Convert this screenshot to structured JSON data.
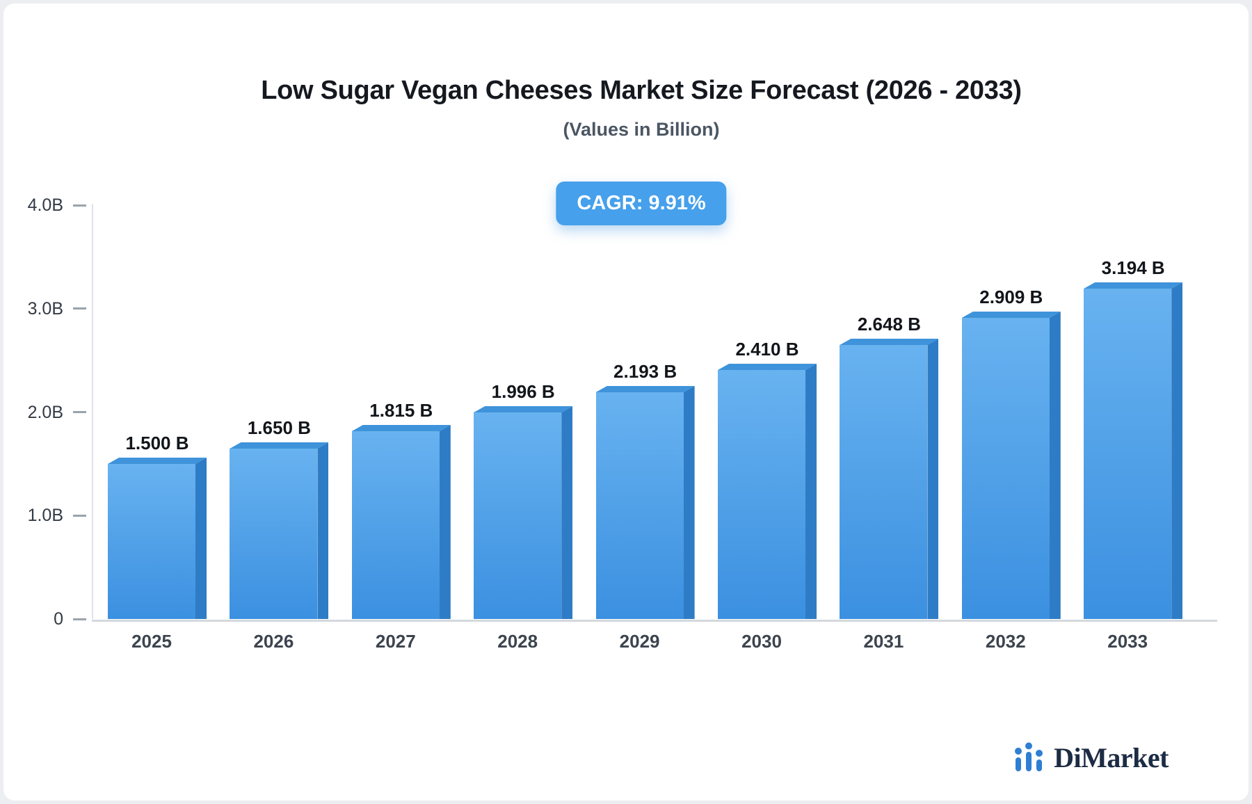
{
  "header": {
    "title": "Low Sugar Vegan Cheeses Market Size Forecast (2026 - 2033)",
    "subtitle": "(Values in Billion)",
    "cagr_label": "CAGR: 9.91%"
  },
  "brand": {
    "name": "DiMarket"
  },
  "colors": {
    "accent": "#46a0eb",
    "bar_gradient_top": "#68b2f0",
    "bar_gradient_bottom": "#3b90e0",
    "bar_side": "#2d7cc5",
    "bar_top_face": "#3f93da",
    "axis_line": "#d3d8dd",
    "axis_line_light": "#dfe3e8",
    "tick": "#9aa3ab",
    "logo_blue": "#2e7fd2"
  },
  "chart_data": {
    "type": "bar",
    "title": "Low Sugar Vegan Cheeses Market Size Forecast (2026 - 2033)",
    "subtitle": "(Values in Billion)",
    "cagr": "9.91%",
    "categories": [
      "2025",
      "2026",
      "2027",
      "2028",
      "2029",
      "2030",
      "2031",
      "2032",
      "2033"
    ],
    "values": [
      1.5,
      1.65,
      1.815,
      1.996,
      2.193,
      2.41,
      2.648,
      2.909,
      3.194
    ],
    "value_labels": [
      "1.500 B",
      "1.650 B",
      "1.815 B",
      "1.996 B",
      "2.193 B",
      "2.410 B",
      "2.648 B",
      "2.909 B",
      "3.194 B"
    ],
    "ylabel": "",
    "xlabel": "",
    "ylim": [
      0,
      4.0
    ],
    "yticks": [
      4.0,
      3.0,
      2.0,
      1.0,
      0
    ],
    "ytick_labels": [
      "4.0B",
      "3.0B",
      "2.0B",
      "1.0B",
      "0"
    ],
    "grid": false,
    "legend": false
  }
}
